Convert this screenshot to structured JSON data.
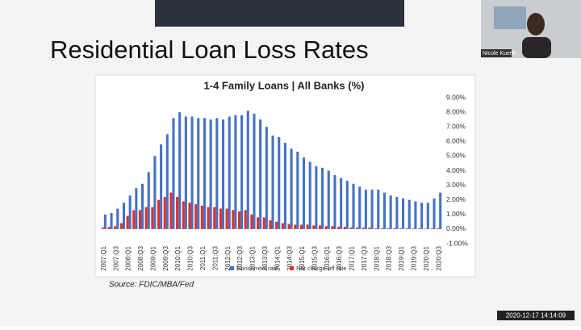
{
  "slide_title": "Residential Loan Loss Rates",
  "presenter_name": "Nicole Kuerth",
  "timestamp": "2020-12-17 14:14:09",
  "chart_data": {
    "type": "bar",
    "title": "1-4 Family Loans | All Banks (%)",
    "source": "Source: FDIC/MBA/Fed",
    "categories": [
      "2007:Q1",
      null,
      "2007:Q3",
      null,
      "2008:Q1",
      null,
      "2008:Q3",
      null,
      "2009:Q1",
      null,
      "2009:Q3",
      null,
      "2010:Q1",
      null,
      "2010:Q3",
      null,
      "2011:Q1",
      null,
      "2011:Q3",
      null,
      "2012:Q1",
      null,
      "2012:Q3",
      null,
      "2013:Q1",
      null,
      "2013:Q3",
      null,
      "2014:Q1",
      null,
      "2014:Q3",
      null,
      "2015:Q1",
      null,
      "2015:Q3",
      null,
      "2016:Q1",
      null,
      "2016:Q3",
      null,
      "2017:Q1",
      null,
      "2017:Q3",
      null,
      "2018:Q1",
      null,
      "2018:Q3",
      null,
      "2019:Q1",
      null,
      "2019:Q3",
      null,
      "2020:Q1",
      null,
      "2020:Q3"
    ],
    "series": [
      {
        "name": "Noncurrent rate",
        "color": "#4472c4",
        "values": [
          1.0,
          1.1,
          1.4,
          1.8,
          2.3,
          2.8,
          3.1,
          3.9,
          5.0,
          5.8,
          6.5,
          7.6,
          8.0,
          7.7,
          7.7,
          7.6,
          7.6,
          7.5,
          7.6,
          7.5,
          7.7,
          7.8,
          7.8,
          8.1,
          7.9,
          7.5,
          7.0,
          6.4,
          6.3,
          5.9,
          5.5,
          5.3,
          4.9,
          4.6,
          4.3,
          4.2,
          4.0,
          3.7,
          3.5,
          3.3,
          3.1,
          2.9,
          2.7,
          2.7,
          2.7,
          2.5,
          2.3,
          2.2,
          2.1,
          2.0,
          1.9,
          1.8,
          1.8,
          2.1,
          2.5
        ]
      },
      {
        "name": "Net charge-off rate",
        "color": "#e0302a",
        "values": [
          0.1,
          0.15,
          0.2,
          0.4,
          0.9,
          1.3,
          1.3,
          1.5,
          1.5,
          2.0,
          2.2,
          2.5,
          2.2,
          1.9,
          1.8,
          1.7,
          1.6,
          1.5,
          1.5,
          1.4,
          1.4,
          1.3,
          1.2,
          1.3,
          1.0,
          0.8,
          0.8,
          0.6,
          0.5,
          0.4,
          0.35,
          0.3,
          0.3,
          0.3,
          0.25,
          0.25,
          0.2,
          0.2,
          0.15,
          0.15,
          0.1,
          0.1,
          0.1,
          0.1,
          0.05,
          0.05,
          0.05,
          0.05,
          0.05,
          0.05,
          0.04,
          0.04,
          0.03,
          0.04,
          0.05
        ]
      }
    ],
    "ylim": [
      -1,
      9
    ],
    "yticks": [
      {
        "value": -1,
        "label": "-1.00%"
      },
      {
        "value": 0,
        "label": "0.00%"
      },
      {
        "value": 1,
        "label": "1.00%"
      },
      {
        "value": 2,
        "label": "2.00%"
      },
      {
        "value": 3,
        "label": "3.00%"
      },
      {
        "value": 4,
        "label": "4.00%"
      },
      {
        "value": 5,
        "label": "5.00%"
      },
      {
        "value": 6,
        "label": "6.00%"
      },
      {
        "value": 7,
        "label": "7.00%"
      },
      {
        "value": 8,
        "label": "8.00%"
      },
      {
        "value": 9,
        "label": "9.00%"
      }
    ],
    "grid": false,
    "legend": "bottom"
  }
}
